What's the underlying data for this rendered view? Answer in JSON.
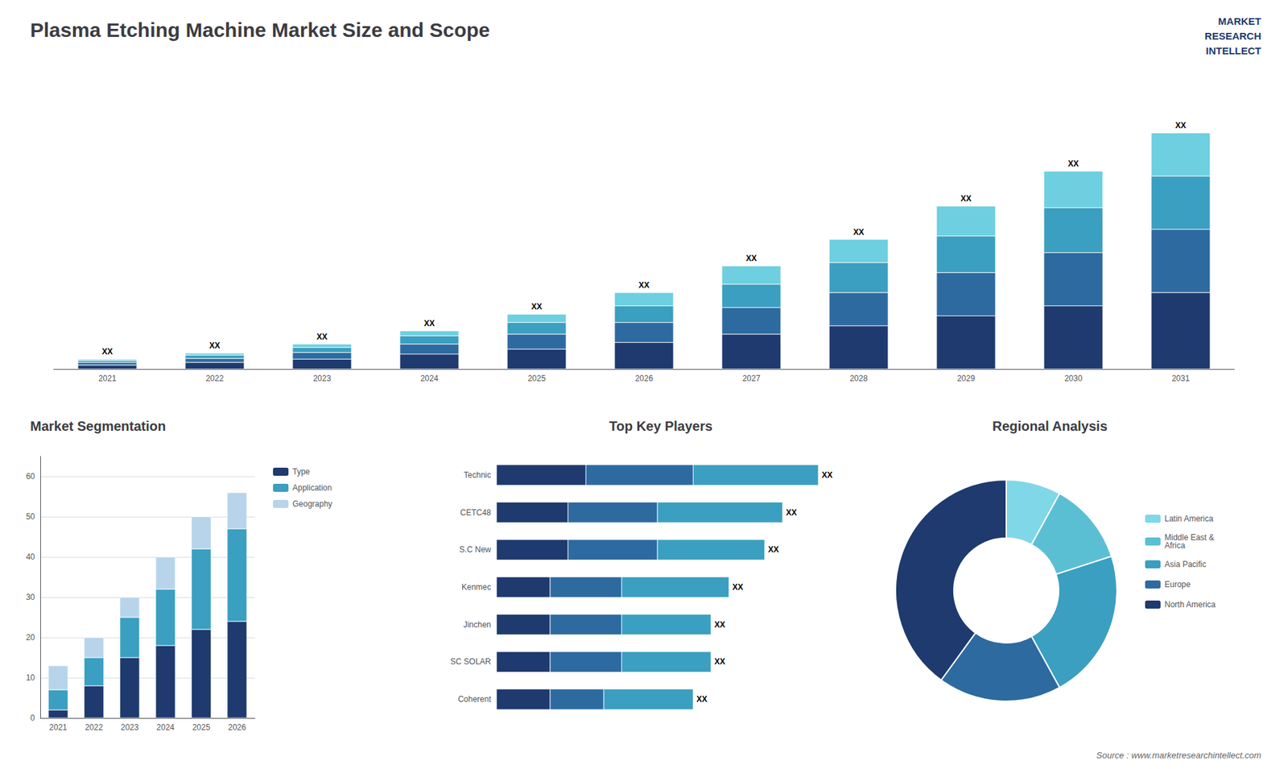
{
  "chart_data": [
    {
      "type": "bar",
      "title": "Plasma Etching Machine Market Size and Scope",
      "categories": [
        "2021",
        "2022",
        "2023",
        "2024",
        "2025",
        "2026",
        "2027",
        "2028",
        "2029",
        "2030",
        "2031"
      ],
      "series": [
        {
          "color": "#1e3a6e",
          "values": [
            1.2,
            2.0,
            3.0,
            4.5,
            6.0,
            8.0,
            10.5,
            13.0,
            16.0,
            19.0,
            23.0
          ]
        },
        {
          "color": "#2d6aa0",
          "values": [
            0.8,
            1.2,
            2.0,
            3.0,
            4.5,
            6.0,
            8.0,
            10.0,
            13.0,
            16.0,
            19.0
          ]
        },
        {
          "color": "#3a9fc0",
          "values": [
            0.6,
            1.0,
            1.5,
            2.5,
            3.5,
            5.0,
            7.0,
            9.0,
            11.0,
            13.5,
            16.0
          ]
        },
        {
          "color": "#6dcfe0",
          "values": [
            0.4,
            0.6,
            1.0,
            1.5,
            2.5,
            4.0,
            5.5,
            7.0,
            9.0,
            11.0,
            13.0
          ]
        }
      ],
      "stacked": true,
      "ylim": [
        0,
        88.75
      ],
      "tick_labels": "x",
      "grid": false,
      "annotations": [
        "XX",
        "XX",
        "XX",
        "XX",
        "XX",
        "XX",
        "XX",
        "XX",
        "XX",
        "XX",
        "XX"
      ]
    },
    {
      "type": "bar",
      "title": "Market Segmentation",
      "categories": [
        "2021",
        "2022",
        "2023",
        "2024",
        "2025",
        "2026"
      ],
      "series": [
        {
          "name": "Type",
          "color": "#1e3a6e",
          "values": [
            2,
            8,
            15,
            18,
            22,
            24
          ]
        },
        {
          "name": "Application",
          "color": "#3a9fc0",
          "values": [
            5,
            7,
            10,
            14,
            20,
            23
          ]
        },
        {
          "name": "Geography",
          "color": "#b8d4ea",
          "values": [
            6,
            5,
            5,
            8,
            8,
            9
          ]
        }
      ],
      "stacked": true,
      "ylim": [
        0,
        65
      ],
      "yticks": [
        0,
        10,
        20,
        30,
        40,
        50,
        60
      ],
      "grid": true,
      "legend": "right"
    },
    {
      "type": "bar",
      "title": "Top Key Players",
      "orientation": "horizontal",
      "categories": [
        "Technic",
        "CETC48",
        "S.C New",
        "Kenmec",
        "Jinchen",
        "SC SOLAR",
        "Coherent"
      ],
      "series": [
        {
          "color": "#1e3a6e",
          "values": [
            5,
            4,
            4,
            3,
            3,
            3,
            3
          ]
        },
        {
          "color": "#2d6aa0",
          "values": [
            6,
            5,
            5,
            4,
            4,
            4,
            3
          ]
        },
        {
          "color": "#3a9fc0",
          "values": [
            7,
            7,
            6,
            6,
            5,
            5,
            5
          ]
        }
      ],
      "stacked": true,
      "xlim": [
        0,
        18
      ],
      "tick_labels": "y",
      "grid": false,
      "annotations": [
        "XX",
        "XX",
        "XX",
        "XX",
        "XX",
        "XX",
        "XX"
      ]
    },
    {
      "type": "pie",
      "title": "Regional Analysis",
      "categories": [
        "Latin America",
        "Middle East &\nAfrica",
        "Asia Pacific",
        "Europe",
        "North America"
      ],
      "values": [
        8,
        12,
        22,
        18,
        40
      ],
      "colors": [
        "#7fd7e8",
        "#5bbfd4",
        "#3a9fc0",
        "#2d6aa0",
        "#1e3a6e"
      ],
      "legend": "right"
    }
  ],
  "annotations": [
    "MARKET",
    "RESEARCH",
    "INTELLECT",
    "Source : www.marketresearchintellect.com"
  ]
}
